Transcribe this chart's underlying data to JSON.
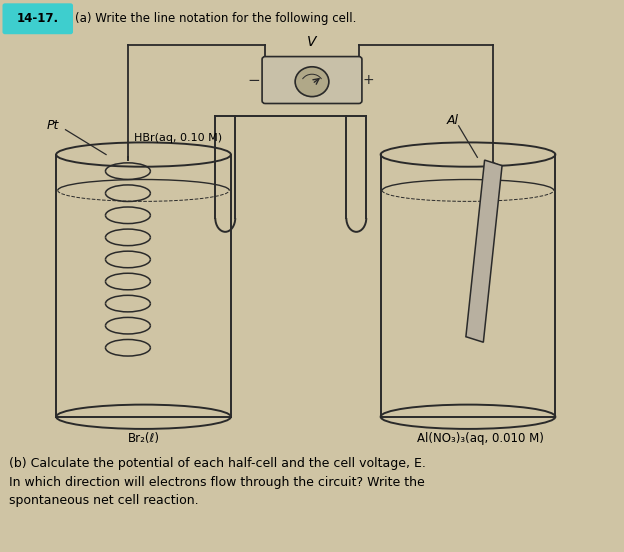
{
  "background_color": "#cfc4a4",
  "title_number": "14-17.",
  "title_number_bg": "#3ecece",
  "title_text": "(a) Write the line notation for the following cell.",
  "part_b_text": "(b) Calculate the potential of each half-cell and the cell voltage, E.\nIn which direction will electrons flow through the circuit? Write the\nspontaneous net cell reaction.",
  "left_label_electrode": "Pt",
  "left_label_solution": "HBr(aq, 0.10 M)",
  "left_label_bottom": "Br₂(ℓ)",
  "right_label_electrode": "Al",
  "right_label_bottom": "Al(NO₃)₃(aq, 0.010 M)",
  "voltmeter_label": "V",
  "minus_label": "−",
  "plus_label": "+",
  "fig_width": 6.24,
  "fig_height": 5.52,
  "dpi": 100
}
